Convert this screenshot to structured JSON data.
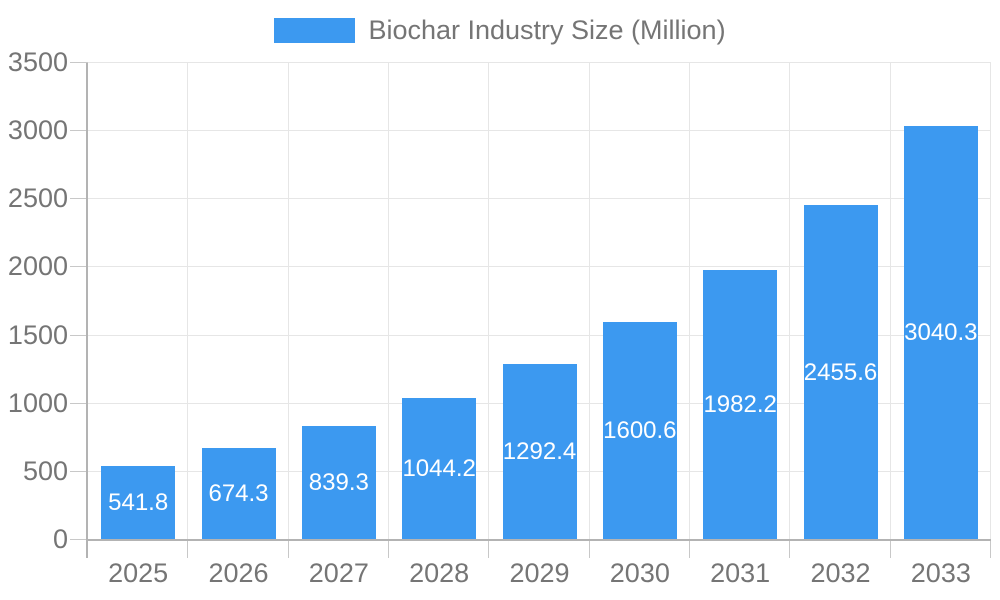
{
  "chart_data": {
    "type": "bar",
    "title": "Biochar Industry Size (Million)",
    "legend_position": "top",
    "categories": [
      "2025",
      "2026",
      "2027",
      "2028",
      "2029",
      "2030",
      "2031",
      "2032",
      "2033"
    ],
    "values": [
      541.8,
      674.3,
      839.3,
      1044.2,
      1292.4,
      1600.6,
      1982.2,
      2455.6,
      3040.3
    ],
    "value_labels": [
      "541.8",
      "674.3",
      "839.3",
      "1044.2",
      "1292.4",
      "1600.6",
      "1982.2",
      "2455.6",
      "3040.3"
    ],
    "xlabel": "",
    "ylabel": "",
    "ylim": [
      0,
      3500
    ],
    "y_ticks": [
      0,
      500,
      1000,
      1500,
      2000,
      2500,
      3000,
      3500
    ],
    "grid": true,
    "colors": {
      "bar": "#3c99f0",
      "bar_value_text": "#ffffff",
      "axis_text": "#757575",
      "gridline": "#e6e6e6",
      "tick": "#c8c8c8",
      "axis_line": "#b3b3b3",
      "background": "#ffffff"
    }
  }
}
